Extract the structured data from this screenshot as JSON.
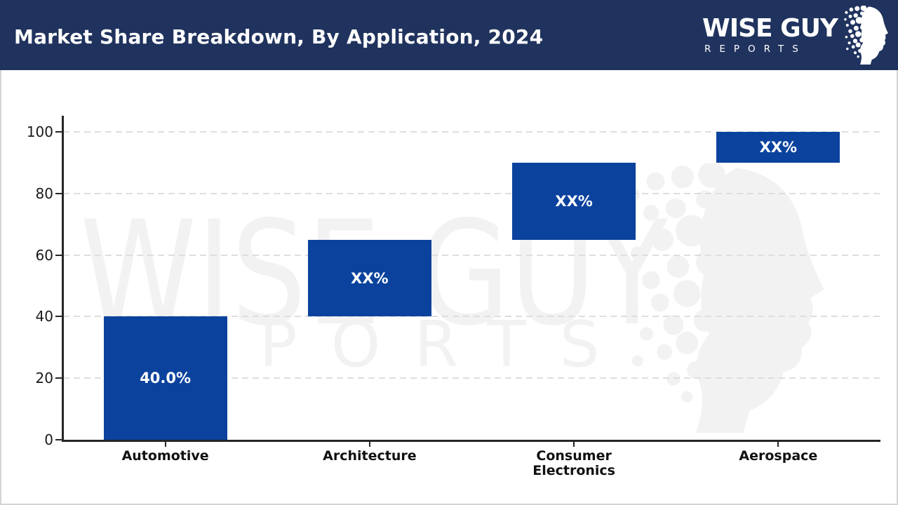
{
  "header": {
    "title": "Market Share Breakdown, By Application, 2024",
    "logo": {
      "line1": "WISE GUY",
      "line2": "REPORTS"
    }
  },
  "watermark": {
    "line1": "WISE GUY",
    "line2": "REPORTS"
  },
  "colors": {
    "header_bg": "#20335e",
    "bar_blue": "#0b429d",
    "axis": "#262626",
    "grid": "#dedede",
    "watermark": "#f2f2f2",
    "title_text": "#ffffff",
    "bar_label_text": "#ffffff"
  },
  "chart_data": {
    "type": "bar",
    "subtype": "floating-waterfall",
    "title": "Market Share Breakdown, By Application, 2024",
    "xlabel": "",
    "ylabel": "",
    "categories": [
      "Automotive",
      "Architecture",
      "Consumer Electronics",
      "Aerospace"
    ],
    "series": [
      {
        "name": "Market share (%)",
        "segment_start": [
          0,
          40,
          65,
          90
        ],
        "segment_end": [
          40,
          65,
          90,
          100
        ],
        "values": [
          40,
          25,
          25,
          10
        ]
      }
    ],
    "bar_labels": [
      "40.0%",
      "XX%",
      "XX%",
      "XX%"
    ],
    "yticks": [
      0,
      20,
      40,
      60,
      80,
      100
    ],
    "ylim": [
      0,
      105
    ],
    "grid": "horizontal-dashed",
    "legend": "none",
    "bar_color": "#0b429d"
  }
}
